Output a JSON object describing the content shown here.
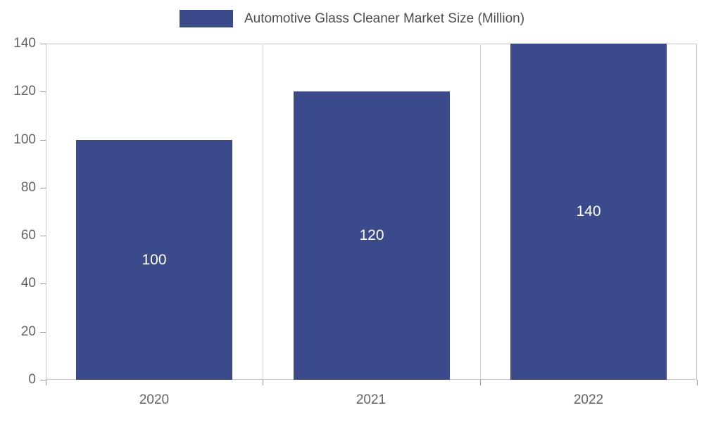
{
  "chart_data": {
    "type": "bar",
    "title": "Automotive Glass Cleaner Market Size (Million)",
    "categories": [
      "2020",
      "2021",
      "2022"
    ],
    "values": [
      100,
      120,
      140
    ],
    "series": [
      {
        "name": "Automotive Glass Cleaner Market Size (Million)",
        "values": [
          100,
          120,
          140
        ]
      }
    ],
    "xlabel": "",
    "ylabel": "",
    "ylim": [
      0,
      140
    ],
    "yticks": [
      0,
      20,
      40,
      60,
      80,
      100,
      120,
      140
    ],
    "bar_color": "#3A4A8B",
    "value_label_color": "#ffffff",
    "legend_position": "top",
    "grid": "vertical-only",
    "data_labels": "inside-center"
  },
  "legend": {
    "label": "Automotive Glass Cleaner Market Size (Million)"
  }
}
